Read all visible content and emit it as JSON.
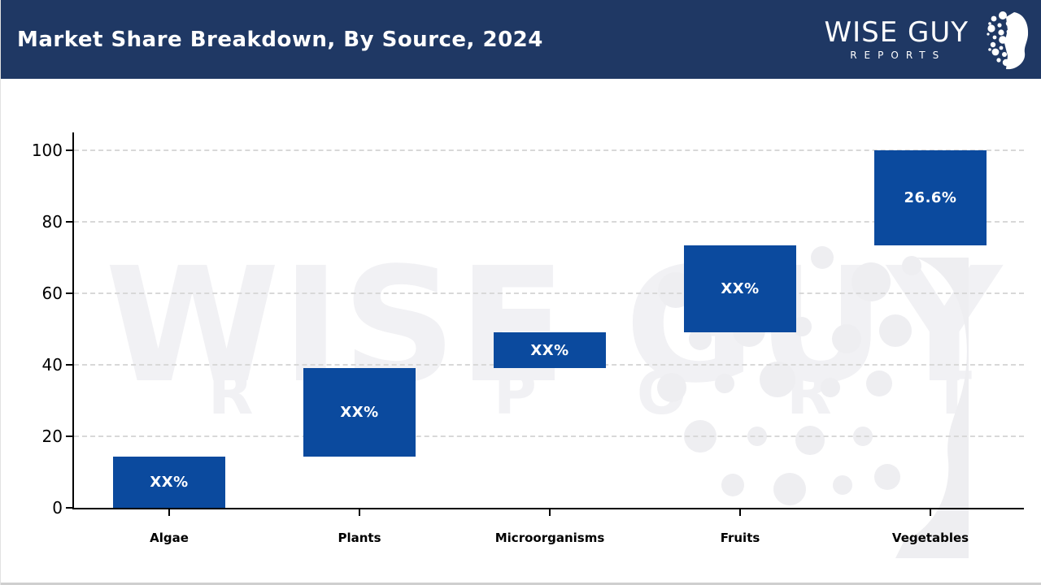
{
  "header": {
    "title": "Market Share Breakdown, By Source, 2024",
    "logo": {
      "name": "WISE GUY",
      "subtitle": "REPORTS"
    }
  },
  "watermark": {
    "line1": "WISE GUY",
    "line2": "REPORTS"
  },
  "chart_data": {
    "type": "bar",
    "subtype": "waterfall",
    "title": "Market Share Breakdown, By Source, 2024",
    "xlabel": "",
    "ylabel": "",
    "categories": [
      "Algae",
      "Plants",
      "Microorganisms",
      "Fruits",
      "Vegetables"
    ],
    "bars": [
      {
        "category": "Algae",
        "start": 0,
        "end": 14.4,
        "value": 14.4,
        "label": "XX%"
      },
      {
        "category": "Plants",
        "start": 14.4,
        "end": 39.0,
        "value": 24.6,
        "label": "XX%"
      },
      {
        "category": "Microorganisms",
        "start": 39.0,
        "end": 49.1,
        "value": 10.1,
        "label": "XX%"
      },
      {
        "category": "Fruits",
        "start": 49.1,
        "end": 73.4,
        "value": 24.3,
        "label": "XX%"
      },
      {
        "category": "Vegetables",
        "start": 73.4,
        "end": 100.0,
        "value": 26.6,
        "label": "26.6%"
      }
    ],
    "yticks": [
      0,
      20,
      40,
      60,
      80,
      100
    ],
    "ylim": [
      0,
      105.5
    ],
    "grid": "horizontal-dashed",
    "legend": "none",
    "colors": {
      "bar": "#0b4a9e",
      "bar_label": "#ffffff",
      "header_bg": "#1f3864",
      "grid": "#d8d8d8",
      "axis": "#000000",
      "watermark": "#f1f1f4"
    }
  }
}
